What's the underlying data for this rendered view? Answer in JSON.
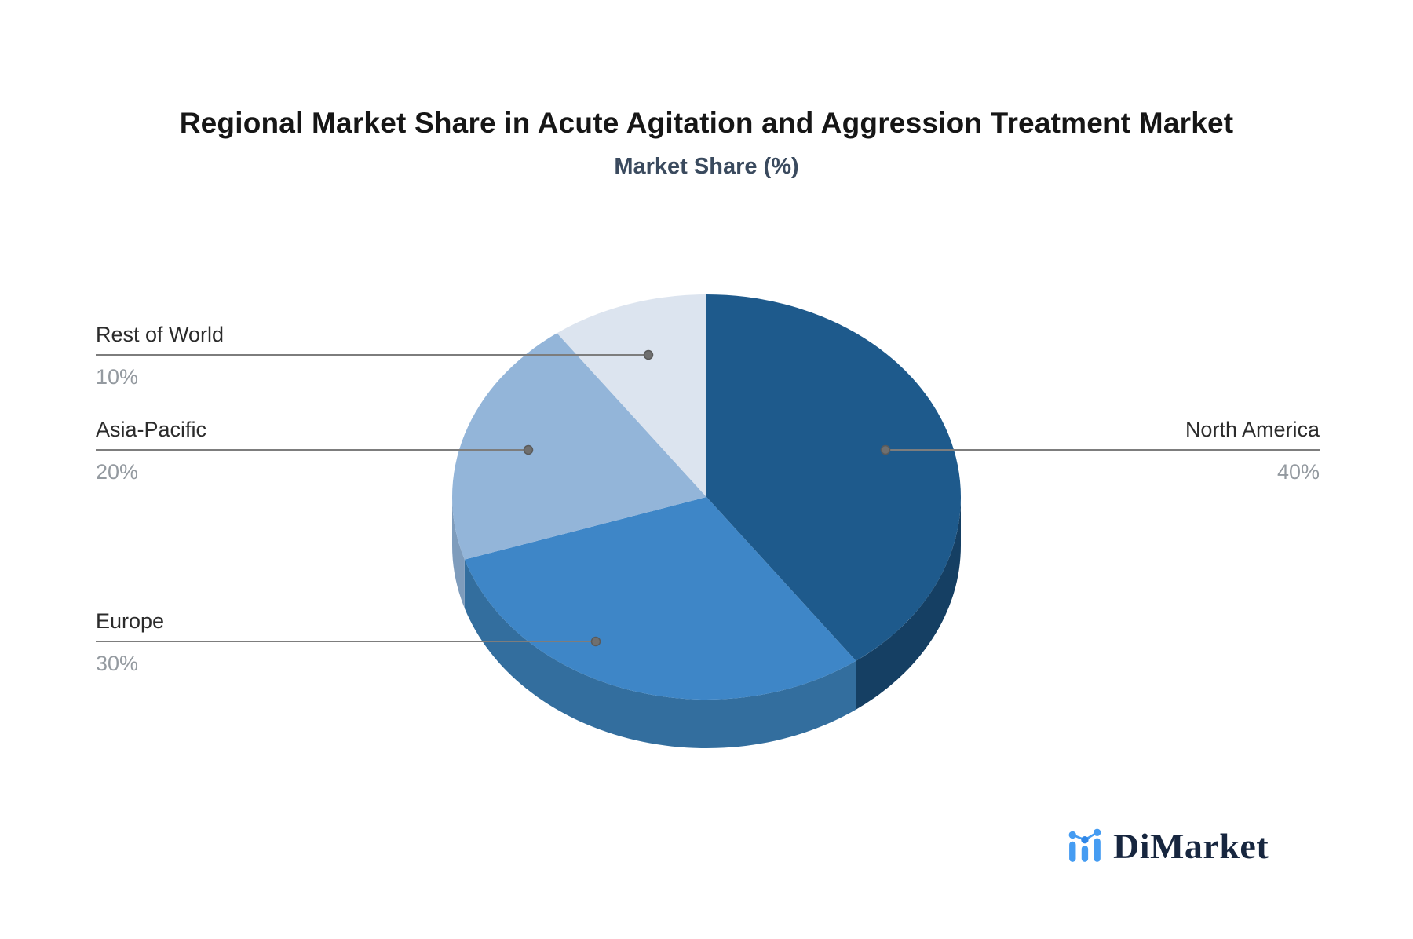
{
  "chart_data": {
    "type": "pie",
    "style": "3d",
    "title": "Regional Market Share in Acute Agitation and Aggression Treatment Market",
    "subtitle": "Market Share (%)",
    "unit": "%",
    "start_angle_deg": 0,
    "direction": "clockwise",
    "legend_position": "none",
    "labeling": "leader-lines",
    "slices": [
      {
        "label": "North America",
        "value": 40,
        "percent_label": "40%",
        "color": "#1e5a8c",
        "side_color": "#153f63"
      },
      {
        "label": "Europe",
        "value": 30,
        "percent_label": "30%",
        "color": "#3e86c7",
        "side_color": "#336e9e"
      },
      {
        "label": "Asia-Pacific",
        "value": 20,
        "percent_label": "20%",
        "color": "#93b5d9",
        "side_color": "#7e9cbc"
      },
      {
        "label": "Rest of World",
        "value": 10,
        "percent_label": "10%",
        "color": "#dce4ef",
        "side_color": "#c3cedd"
      }
    ],
    "leader_line_color": "#7d7d7d",
    "leader_dot_color": "#6f6f6f"
  },
  "branding": {
    "logo_text": "DiMarket",
    "logo_icon": "bar-chart-icon"
  }
}
